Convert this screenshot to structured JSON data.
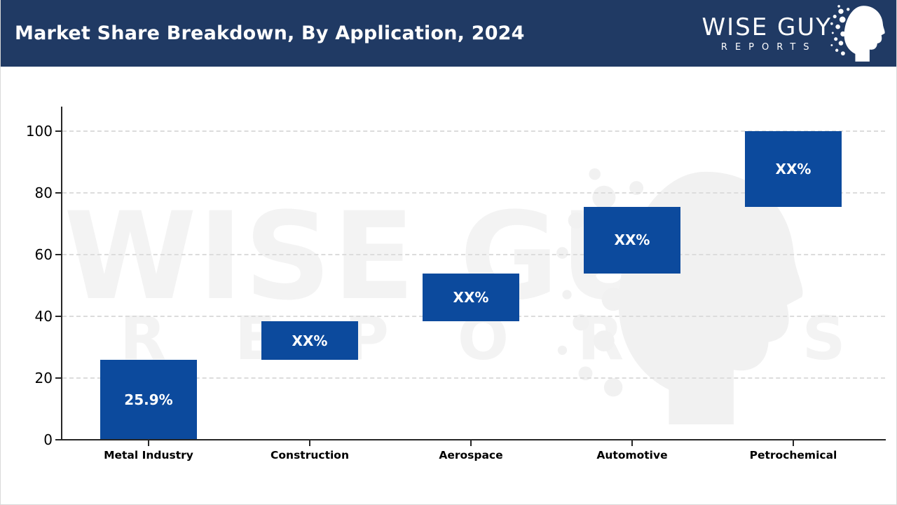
{
  "header": {
    "title": "Market Share Breakdown, By Application, 2024",
    "logo": {
      "line1": "WISE GUY",
      "line2": "REPORTS"
    }
  },
  "watermark": {
    "line1": "WISE GUY",
    "line2": "R E P O R T S"
  },
  "colors": {
    "header_bg": "#203A64",
    "bar_fill": "#0C4A9D",
    "bar_label": "#FFFFFF",
    "grid": "#DCDCDC",
    "axis": "#262626",
    "tick_text": "#000000",
    "watermark": "#F3F3F3"
  },
  "chart_data": {
    "type": "bar",
    "subtype": "waterfall",
    "title": "Market Share Breakdown, By Application, 2024",
    "categories": [
      "Metal Industry",
      "Construction",
      "Aerospace",
      "Automotive",
      "Petrochemical"
    ],
    "segments": [
      {
        "category": "Metal Industry",
        "start": 0,
        "end": 25.9,
        "label": "25.9%"
      },
      {
        "category": "Construction",
        "start": 25.9,
        "end": 38.4,
        "label": "XX%"
      },
      {
        "category": "Aerospace",
        "start": 38.4,
        "end": 53.9,
        "label": "XX%"
      },
      {
        "category": "Automotive",
        "start": 53.9,
        "end": 75.5,
        "label": "XX%"
      },
      {
        "category": "Petrochemical",
        "start": 75.5,
        "end": 100,
        "label": "XX%"
      }
    ],
    "xlabel": "",
    "ylabel": "",
    "yticks": [
      0,
      20,
      40,
      60,
      80,
      100
    ],
    "ylim": [
      0,
      100
    ],
    "grid": "horizontal-dashed",
    "legend": "none"
  }
}
